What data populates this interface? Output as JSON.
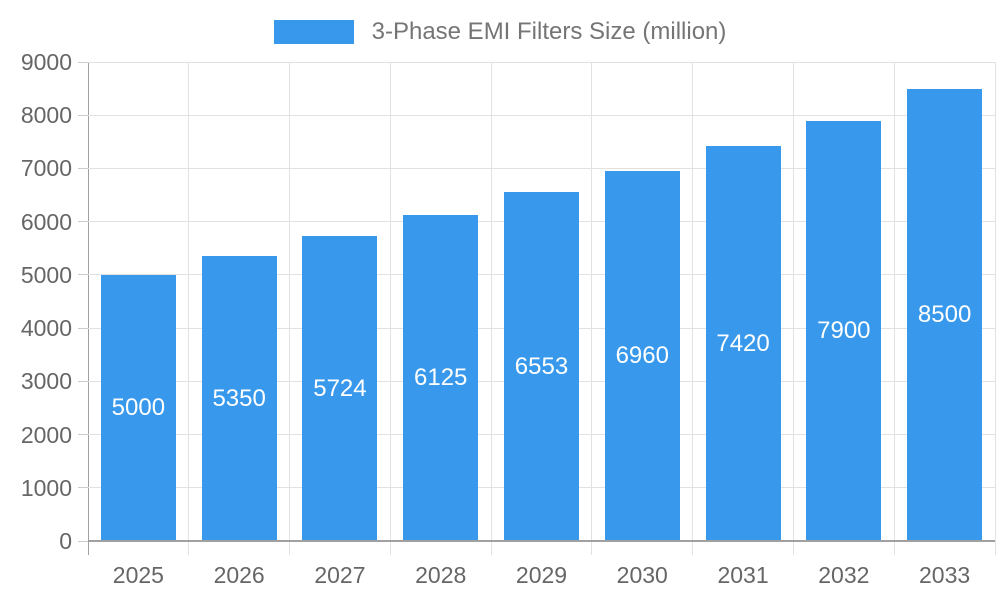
{
  "legend": {
    "label": "3-Phase EMI Filters Size (million)"
  },
  "chart_data": {
    "type": "bar",
    "title": "3-Phase EMI Filters Size (million)",
    "categories": [
      "2025",
      "2026",
      "2027",
      "2028",
      "2029",
      "2030",
      "2031",
      "2032",
      "2033"
    ],
    "values": [
      5000,
      5350,
      5724,
      6125,
      6553,
      6960,
      7420,
      7900,
      8500
    ],
    "xlabel": "",
    "ylabel": "",
    "ylim": [
      0,
      9000
    ],
    "yticks": [
      0,
      1000,
      2000,
      3000,
      4000,
      5000,
      6000,
      7000,
      8000,
      9000
    ],
    "grid": true,
    "legend_position": "top",
    "bar_value_labels": true
  },
  "colors": {
    "bar": "#3899EC",
    "grid": "#e2e2e2",
    "axis": "#a0a0a0",
    "tick": "#cccccc",
    "axis_text": "#666666",
    "legend_text": "#757575",
    "bar_label_text": "#ffffff",
    "background": "#ffffff"
  }
}
